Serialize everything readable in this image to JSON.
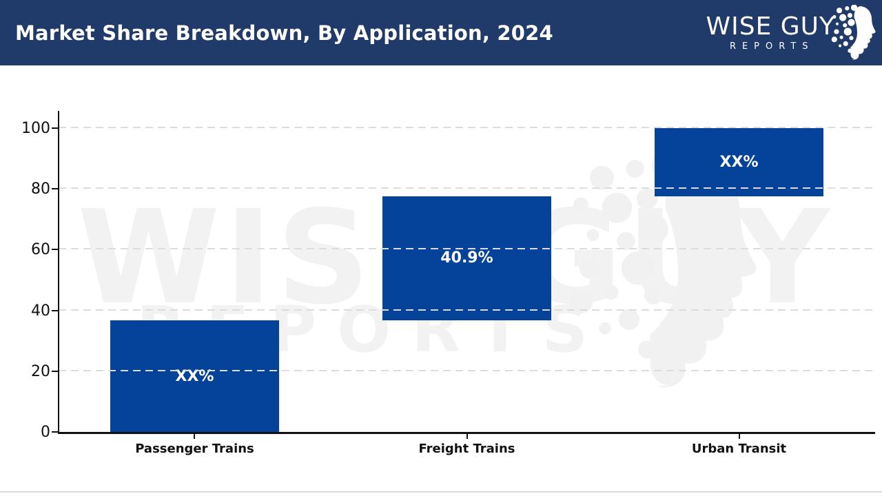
{
  "header": {
    "title": "Market Share Breakdown, By Application, 2024",
    "logo": {
      "line1": "WISE GUY",
      "line2": "REPORTS"
    }
  },
  "watermark": {
    "line1": "WISE GUY",
    "line2": "REPORTS"
  },
  "colors": {
    "header_bg": "#203a69",
    "bar": "#05439b",
    "grid": "#dcdcdc",
    "axis": "#111111",
    "bar_label_text": "#ffffff",
    "watermark": "#f2f2f2",
    "footer_line": "#d9d9d9"
  },
  "chart_data": {
    "type": "bar",
    "variant": "waterfall-floating-bars",
    "title": "Market Share Breakdown, By Application, 2024",
    "categories": [
      "Passenger Trains",
      "Freight Trains",
      "Urban Transit"
    ],
    "segments": [
      {
        "category": "Passenger Trains",
        "start": 0,
        "end": 36.7,
        "value": 36.7,
        "label": "XX%"
      },
      {
        "category": "Freight Trains",
        "start": 36.7,
        "end": 77.6,
        "value": 40.9,
        "label": "40.9%"
      },
      {
        "category": "Urban Transit",
        "start": 77.6,
        "end": 100,
        "value": 22.4,
        "label": "XX%"
      }
    ],
    "xlabel": "",
    "ylabel": "",
    "ylim": [
      0,
      100
    ],
    "yticks": [
      0,
      20,
      40,
      60,
      80,
      100
    ],
    "grid": "horizontal-dashed-over-bars",
    "legend": "none"
  }
}
